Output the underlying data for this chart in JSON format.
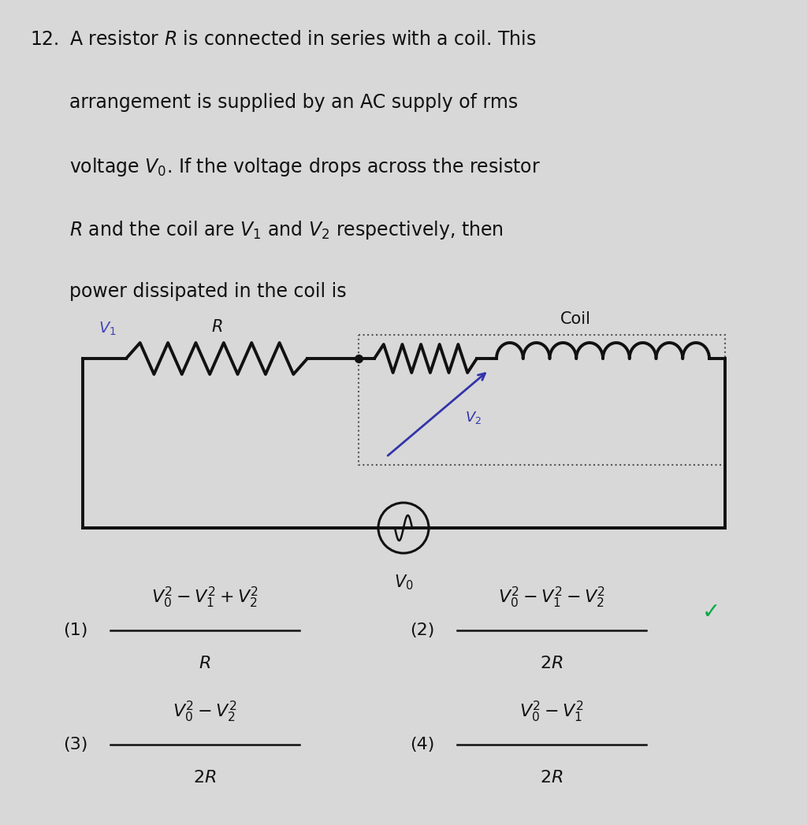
{
  "bg_color": "#d8d8d8",
  "text_color": "#111111",
  "check_color": "#00aa44",
  "circuit_wire_color": "#111111",
  "coil_box_color": "#555555",
  "v2_color": "#3333aa",
  "v1_color": "#4444bb",
  "figsize": [
    10.24,
    10.47
  ],
  "dpi": 100,
  "q_num": "12.",
  "q_lines": [
    "A resistor $R$ is connected in series with a coil. This",
    "arrangement is supplied by an AC supply of rms",
    "voltage $V_0$. If the voltage drops across the resistor",
    "$R$ and the coil are $V_1$ and $V_2$ respectively, then",
    "power dissipated in the coil is"
  ],
  "opt1_label": "(1)",
  "opt1_num": "$V_0^2-V_1^2+V_2^2$",
  "opt1_den": "$R$",
  "opt2_label": "(2)",
  "opt2_num": "$V_0^2-V_1^2-V_2^2$",
  "opt2_den": "$2R$",
  "opt3_label": "(3)",
  "opt3_num": "$V_0^2-V_2^2$",
  "opt3_den": "$2R$",
  "opt4_label": "(4)",
  "opt4_num": "$V_0^2-V_1^2$",
  "opt4_den": "$2R$"
}
